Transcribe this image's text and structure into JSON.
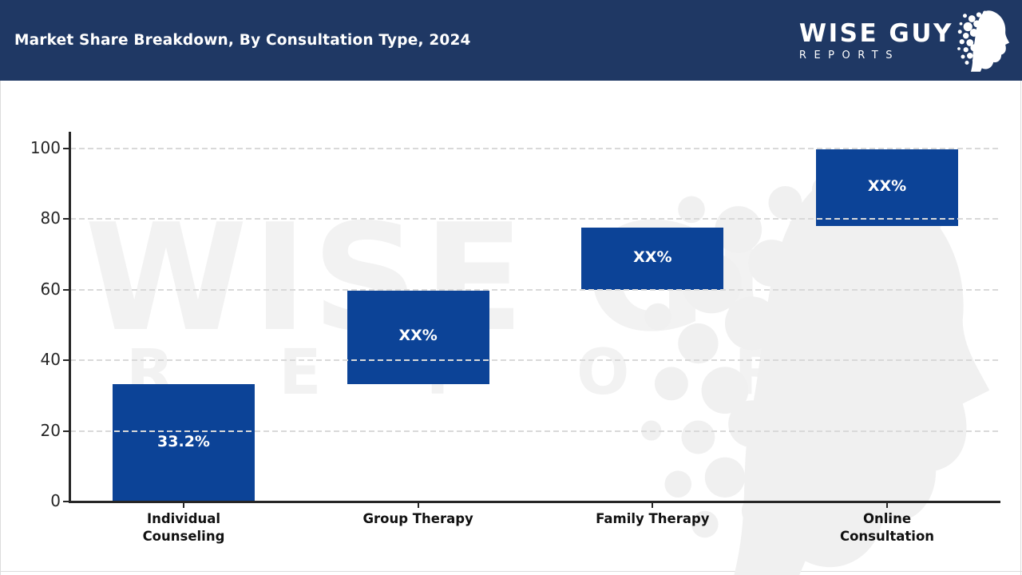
{
  "header": {
    "title": "Market Share Breakdown, By Consultation Type, 2024",
    "logo": {
      "name": "WISE GUY",
      "subname": "REPORTS"
    }
  },
  "watermark": {
    "name": "WISE GUY",
    "subname": "R E P O R T S"
  },
  "chart_data": {
    "type": "bar",
    "variant": "waterfall",
    "title": "Market Share Breakdown, By Consultation Type, 2024",
    "categories": [
      {
        "lines": [
          "Individual",
          "Counseling"
        ]
      },
      {
        "lines": [
          "Group Therapy"
        ]
      },
      {
        "lines": [
          "Family Therapy"
        ]
      },
      {
        "lines": [
          "Online",
          "Consultation"
        ]
      }
    ],
    "segments": [
      {
        "category": "Individual Counseling",
        "start": 0,
        "end": 33.2,
        "label": "33.2%"
      },
      {
        "category": "Group Therapy",
        "start": 33.2,
        "end": 59.8,
        "label": "XX%"
      },
      {
        "category": "Family Therapy",
        "start": 60.0,
        "end": 77.7,
        "label": "XX%"
      },
      {
        "category": "Online Consultation",
        "start": 78.0,
        "end": 99.8,
        "label": "XX%"
      }
    ],
    "y_axis": {
      "ticks": [
        0,
        20,
        40,
        60,
        80,
        100
      ],
      "range": [
        0,
        105
      ]
    },
    "grid": {
      "horizontal": true,
      "style": "dashed"
    },
    "legend": "none",
    "colors": {
      "bar": "#0c4397",
      "header_bg": "#1f3864",
      "grid": "#d9d9d9",
      "axis": "#262626",
      "label_on_bar": "#ffffff",
      "watermark": "#f2f2f2"
    }
  }
}
